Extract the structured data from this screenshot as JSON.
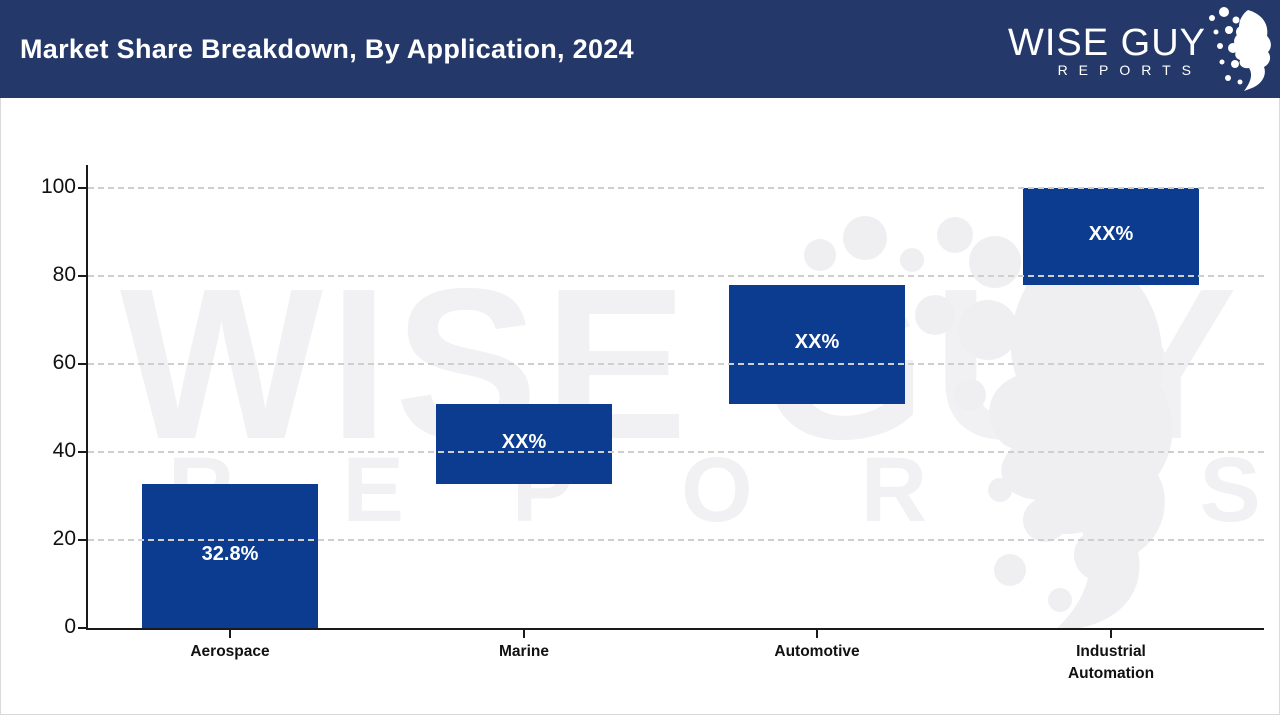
{
  "header": {
    "title": "Market Share Breakdown, By Application, 2024",
    "logo": {
      "line1": "WISE GUY",
      "line2": "REPORTS"
    }
  },
  "watermark": {
    "line1": "WISE GUY",
    "line2": "REPORTS"
  },
  "chart_data": {
    "type": "bar",
    "subtype": "waterfall-floating-bars",
    "title": "Market Share Breakdown, By Application, 2024",
    "xlabel": "",
    "ylabel": "",
    "ylim": [
      0,
      100
    ],
    "yticks": [
      0,
      20,
      40,
      60,
      80,
      100
    ],
    "grid": "horizontal-dashed",
    "bar_color": "#0C3C8F",
    "categories": [
      "Aerospace",
      "Marine",
      "Automotive",
      "Industrial Automation"
    ],
    "bars": [
      {
        "category": "Aerospace",
        "start": 0,
        "end": 32.8,
        "label": "32.8%"
      },
      {
        "category": "Marine",
        "start": 32.8,
        "end": 51,
        "label": "XX%"
      },
      {
        "category": "Automotive",
        "start": 51,
        "end": 78,
        "label": "XX%"
      },
      {
        "category": "Industrial Automation",
        "start": 78,
        "end": 100,
        "label": "XX%"
      }
    ]
  }
}
